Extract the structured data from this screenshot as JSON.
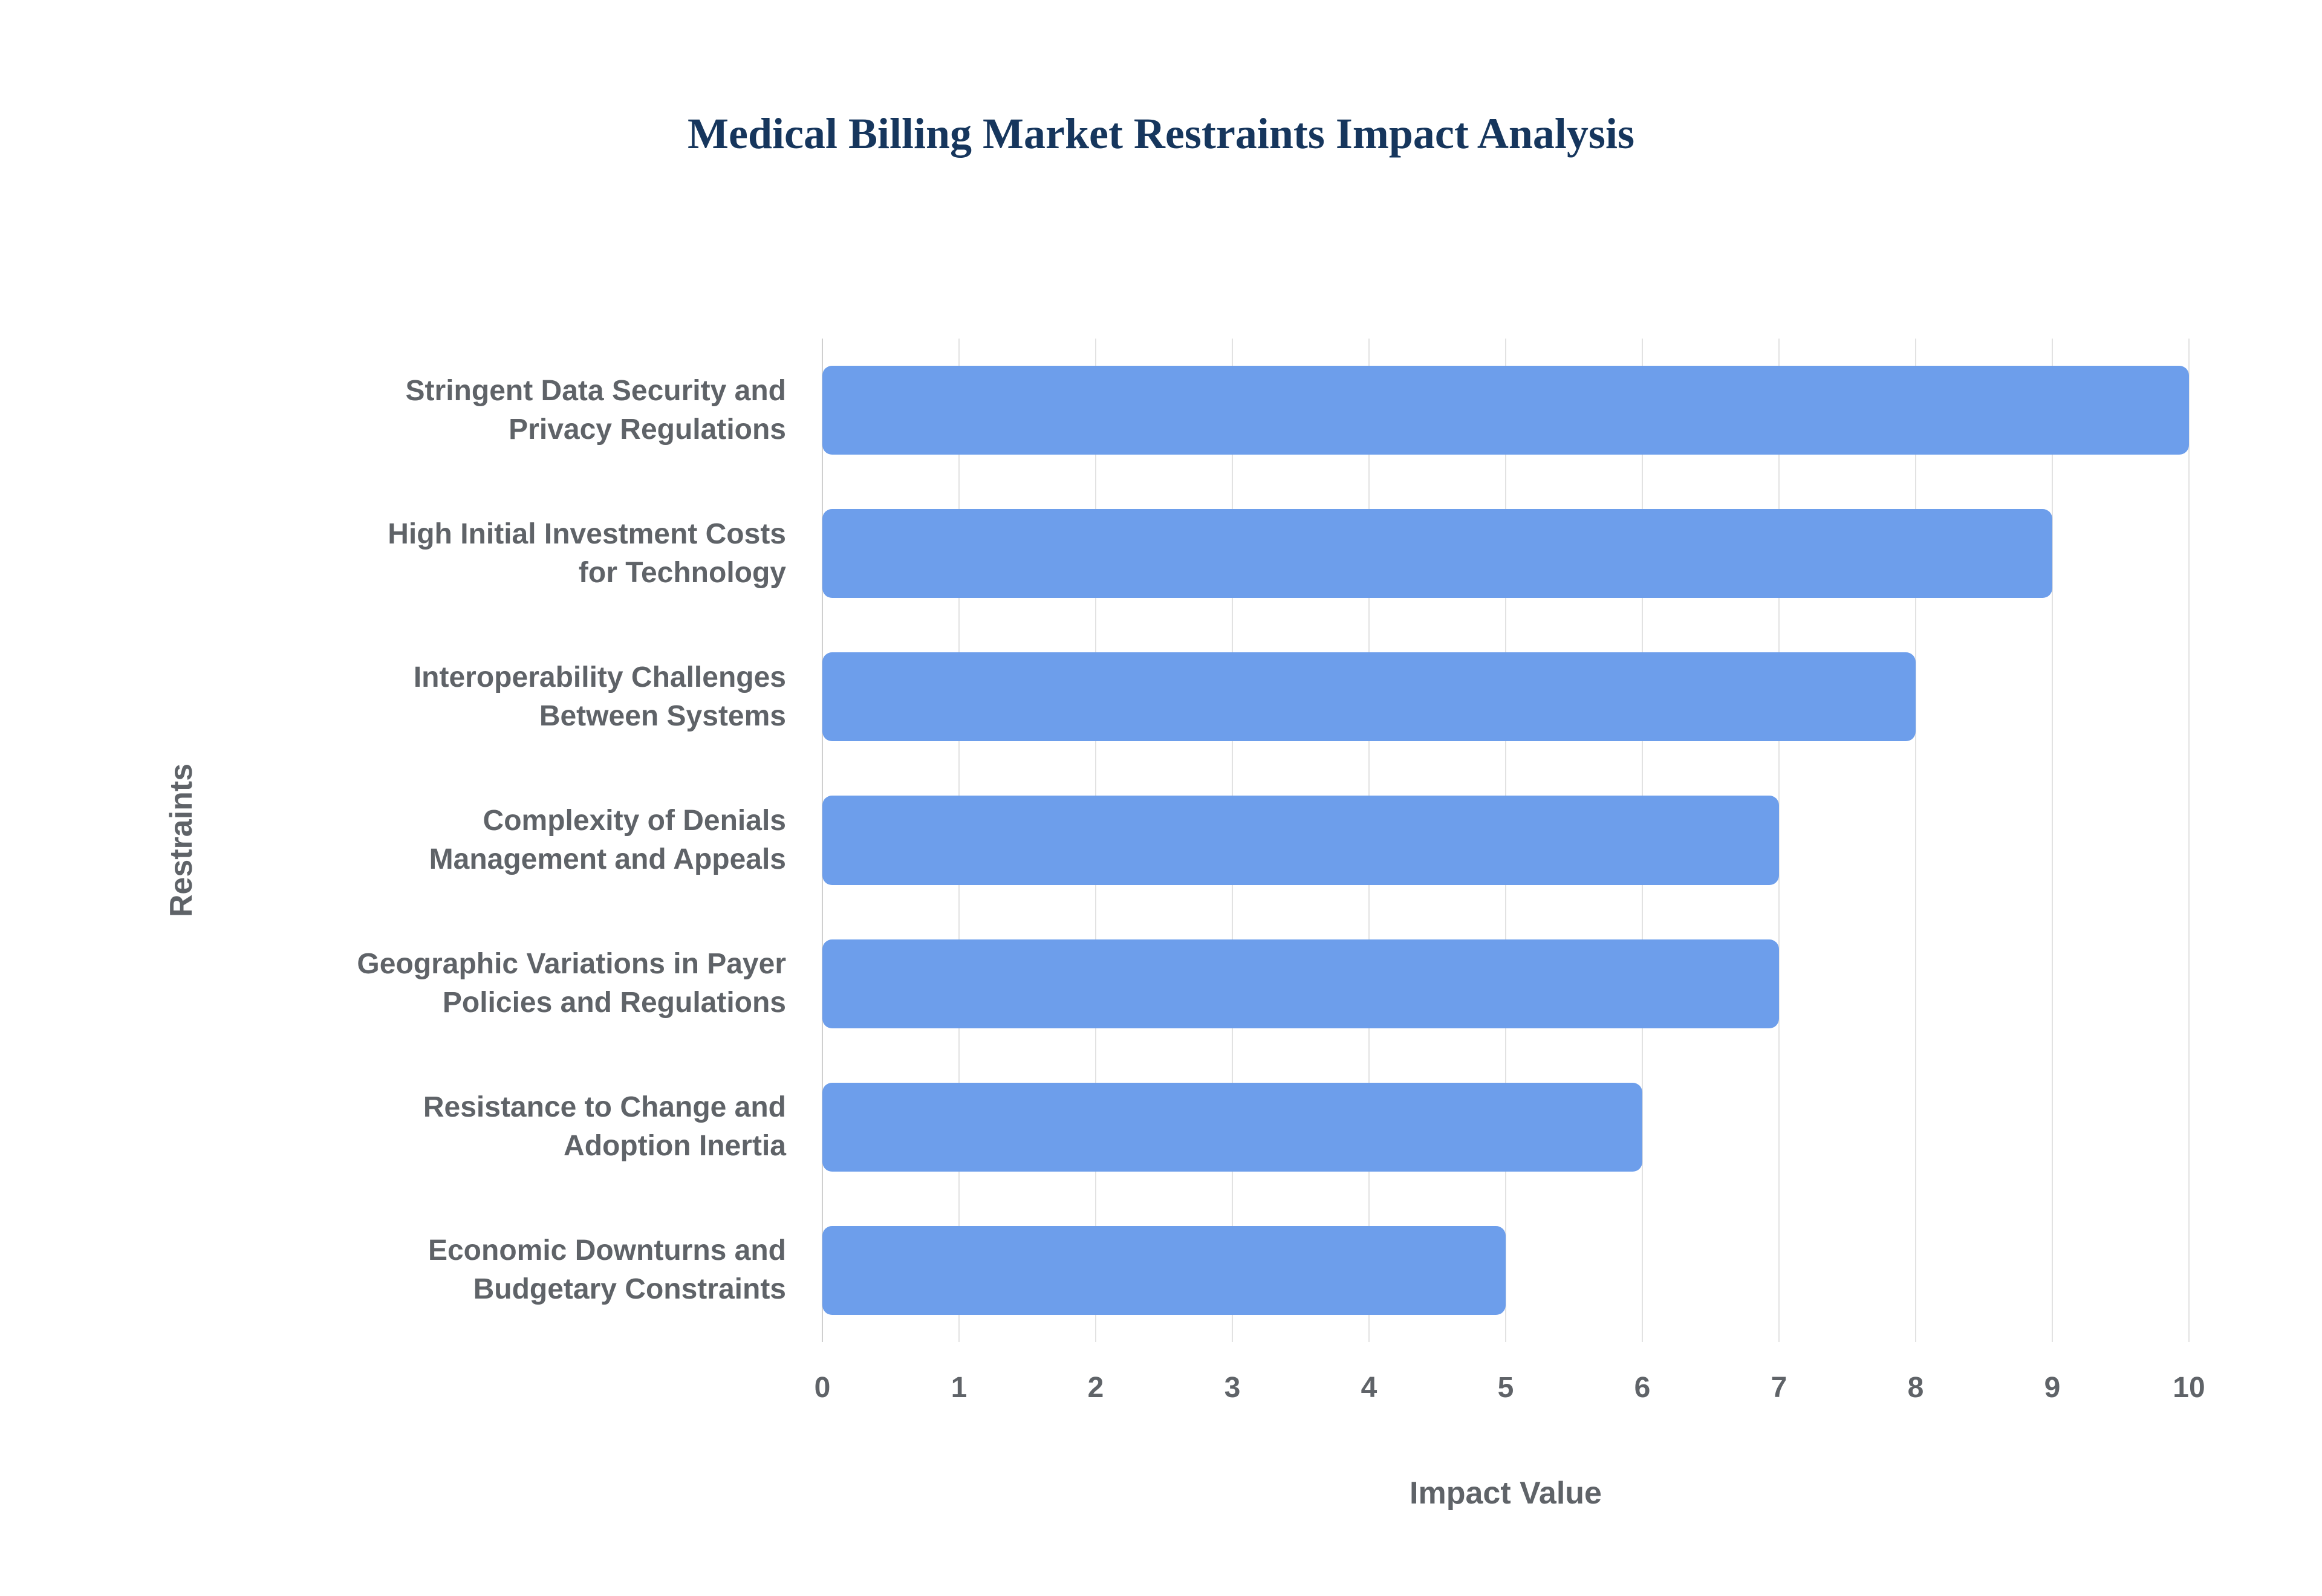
{
  "chart_data": {
    "type": "bar",
    "orientation": "horizontal",
    "title": "Medical Billing Market Restraints Impact Analysis",
    "xlabel": "Impact Value",
    "ylabel": "Restraints",
    "categories": [
      "Stringent Data Security and\nPrivacy Regulations",
      "High Initial Investment Costs\nfor Technology",
      "Interoperability Challenges\nBetween Systems",
      "Complexity of Denials\nManagement and Appeals",
      "Geographic Variations in Payer\nPolicies and Regulations",
      "Resistance to Change and\nAdoption Inertia",
      "Economic Downturns and\nBudgetary Constraints"
    ],
    "values": [
      10,
      9,
      8,
      7,
      7,
      6,
      5
    ],
    "xlim": [
      0,
      10
    ],
    "xticks": [
      0,
      1,
      2,
      3,
      4,
      5,
      6,
      7,
      8,
      9,
      10
    ],
    "grid": true,
    "legend": "none",
    "colors": {
      "bar": "#6d9eeb",
      "title": "#16365d",
      "axis_label": "#5f6368",
      "gridline": "#e2e2e2"
    }
  }
}
